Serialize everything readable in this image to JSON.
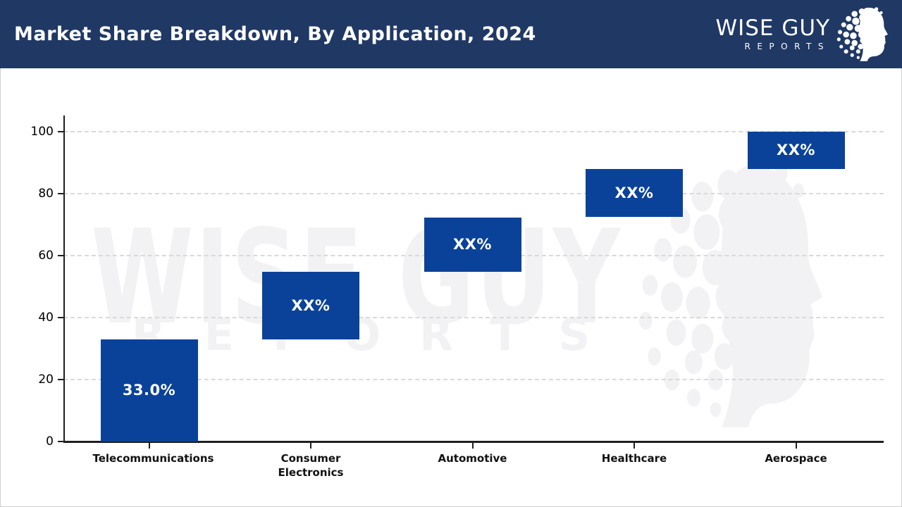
{
  "header": {
    "title": "Market Share Breakdown, By Application, 2024"
  },
  "logo": {
    "name": "WISE GUY",
    "tagline": "REPORTS"
  },
  "watermark": {
    "line1": "WISE GUY",
    "line2": "REPORTS"
  },
  "colors": {
    "header_bg": "#203864",
    "bar": "#0a4299",
    "bar_label": "#ffffff",
    "axis": "#1f1f1f",
    "gridline": "#d9d9d9",
    "watermark": "#f2f2f5"
  },
  "chart_data": {
    "type": "bar",
    "subtype": "floating-segment (waterfall-style market share)",
    "title": "Market Share Breakdown, By Application, 2024",
    "categories": [
      "Telecommunications",
      "Consumer Electronics",
      "Automotive",
      "Healthcare",
      "Aerospace"
    ],
    "segments": [
      {
        "category": "Telecommunications",
        "start": 0,
        "end": 33,
        "label": "33.0%"
      },
      {
        "category": "Consumer Electronics",
        "start": 33,
        "end": 54.8,
        "label": "XX%"
      },
      {
        "category": "Automotive",
        "start": 54.8,
        "end": 72.2,
        "label": "XX%"
      },
      {
        "category": "Healthcare",
        "start": 72.4,
        "end": 88,
        "label": "XX%"
      },
      {
        "category": "Aerospace",
        "start": 88,
        "end": 100,
        "label": "XX%"
      }
    ],
    "xlabel": "",
    "ylabel": "",
    "yticks": [
      0,
      20,
      40,
      60,
      80,
      100
    ],
    "ylim": [
      0,
      105
    ],
    "grid": "horizontal dashed lines at y ticks",
    "legend": "none"
  }
}
